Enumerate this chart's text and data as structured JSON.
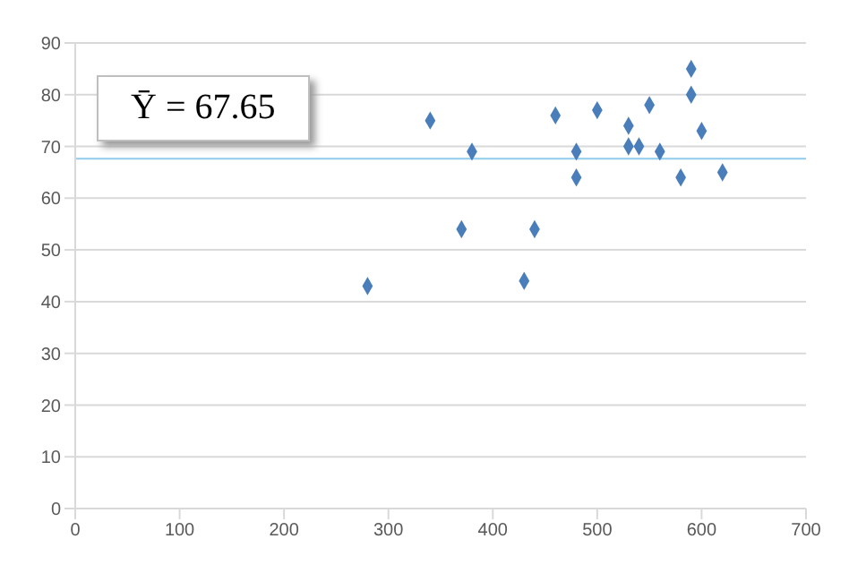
{
  "chart_data": {
    "type": "scatter",
    "x": [
      280,
      340,
      370,
      380,
      430,
      440,
      460,
      480,
      480,
      500,
      530,
      530,
      540,
      550,
      560,
      580,
      590,
      590,
      600,
      620
    ],
    "series": [
      {
        "color": "#4a7ebb",
        "values": [
          43,
          75,
          54,
          69,
          44,
          54,
          76,
          69,
          64,
          77,
          74,
          70,
          70,
          78,
          69,
          64,
          85,
          80,
          73,
          65
        ]
      }
    ],
    "xlim": [
      0,
      700
    ],
    "xticks": [
      0,
      100,
      200,
      300,
      400,
      500,
      600,
      700
    ],
    "ylim": [
      0,
      90
    ],
    "yticks": [
      0,
      10,
      20,
      30,
      40,
      50,
      60,
      70,
      80,
      90
    ],
    "grid": "y",
    "marker": "diamond",
    "ref_lines": [
      {
        "axis": "y",
        "value": 67.65,
        "color": "#8fcbea"
      }
    ],
    "annotations": [
      "Ȳ = 67.65"
    ]
  }
}
